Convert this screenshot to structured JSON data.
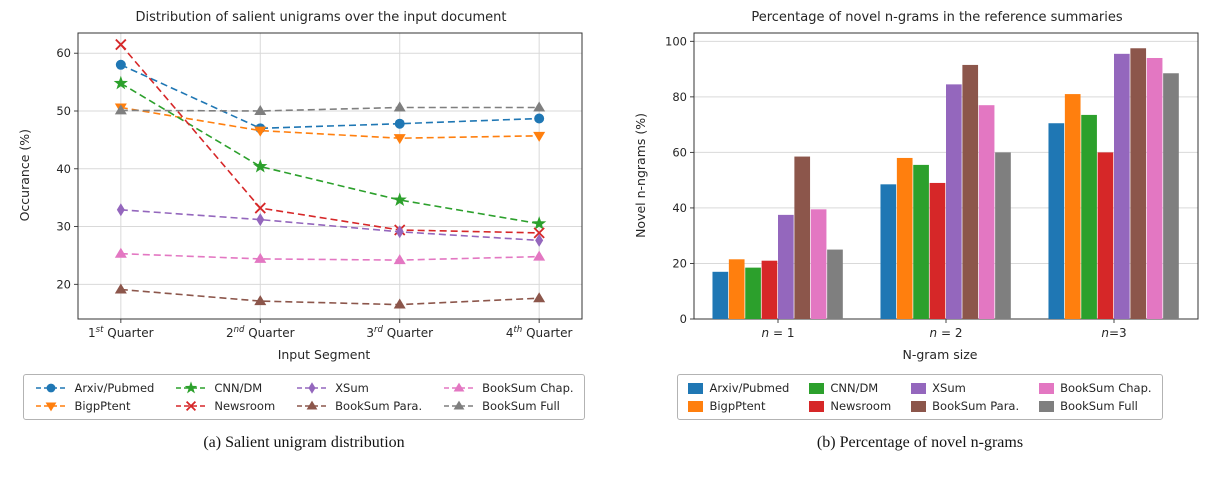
{
  "chart_data": [
    {
      "type": "line",
      "title": "Distribution of salient unigrams over the input document",
      "xlabel": "Input Segment",
      "ylabel": "Occurance (%)",
      "caption": "(a) Salient unigram distribution",
      "categories": [
        "1st Quarter",
        "2nd Quarter",
        "3rd Quarter",
        "4th Quarter"
      ],
      "ylim": [
        14,
        63.5
      ],
      "yticks": [
        20,
        30,
        40,
        50,
        60
      ],
      "grid": "both",
      "legend_position": "below",
      "series": [
        {
          "name": "Arxiv/Pubmed",
          "color": "#1f77b4",
          "marker": "circle",
          "values": [
            58.0,
            47.0,
            47.8,
            48.7
          ]
        },
        {
          "name": "BigpPtent",
          "color": "#ff7f0e",
          "marker": "triangle-down",
          "values": [
            50.6,
            46.6,
            45.3,
            45.7
          ]
        },
        {
          "name": "CNN/DM",
          "color": "#2ca02c",
          "marker": "star",
          "values": [
            54.8,
            40.4,
            34.6,
            30.5
          ]
        },
        {
          "name": "Newsroom",
          "color": "#d62728",
          "marker": "x",
          "values": [
            61.5,
            33.2,
            29.4,
            28.9
          ]
        },
        {
          "name": "XSum",
          "color": "#9467bd",
          "marker": "diamond",
          "values": [
            32.9,
            31.2,
            29.1,
            27.6
          ]
        },
        {
          "name": "BookSum Para.",
          "color": "#8c564b",
          "marker": "triangle-up",
          "values": [
            19.1,
            17.1,
            16.5,
            17.6
          ]
        },
        {
          "name": "BookSum Chap.",
          "color": "#e377c2",
          "marker": "triangle-up",
          "values": [
            25.3,
            24.4,
            24.2,
            24.8
          ]
        },
        {
          "name": "BookSum Full",
          "color": "#7f7f7f",
          "marker": "triangle-up",
          "values": [
            50.1,
            50.0,
            50.6,
            50.6
          ]
        }
      ]
    },
    {
      "type": "bar",
      "title": "Percentage of novel n-grams in the reference summaries",
      "xlabel": "N-gram size",
      "ylabel": "Novel n-ngrams (%)",
      "caption": "(b) Percentage of novel n-grams",
      "categories": [
        "n = 1",
        "n = 2",
        "n=3"
      ],
      "ylim": [
        0,
        103
      ],
      "yticks": [
        0,
        20,
        40,
        60,
        80,
        100
      ],
      "grid": "horizontal",
      "legend_position": "below",
      "series": [
        {
          "name": "Arxiv/Pubmed",
          "color": "#1f77b4",
          "values": [
            17,
            48.5,
            70.5
          ]
        },
        {
          "name": "BigpPtent",
          "color": "#ff7f0e",
          "values": [
            21.5,
            58,
            81
          ]
        },
        {
          "name": "CNN/DM",
          "color": "#2ca02c",
          "values": [
            18.5,
            55.5,
            73.5
          ]
        },
        {
          "name": "Newsroom",
          "color": "#d62728",
          "values": [
            21,
            49,
            60
          ]
        },
        {
          "name": "XSum",
          "color": "#9467bd",
          "values": [
            37.5,
            84.5,
            95.5
          ]
        },
        {
          "name": "BookSum Para.",
          "color": "#8c564b",
          "values": [
            58.5,
            91.5,
            97.5
          ]
        },
        {
          "name": "BookSum Chap.",
          "color": "#e377c2",
          "values": [
            39.5,
            77,
            94
          ]
        },
        {
          "name": "BookSum Full",
          "color": "#7f7f7f",
          "values": [
            25,
            60,
            88.5
          ]
        }
      ]
    }
  ]
}
